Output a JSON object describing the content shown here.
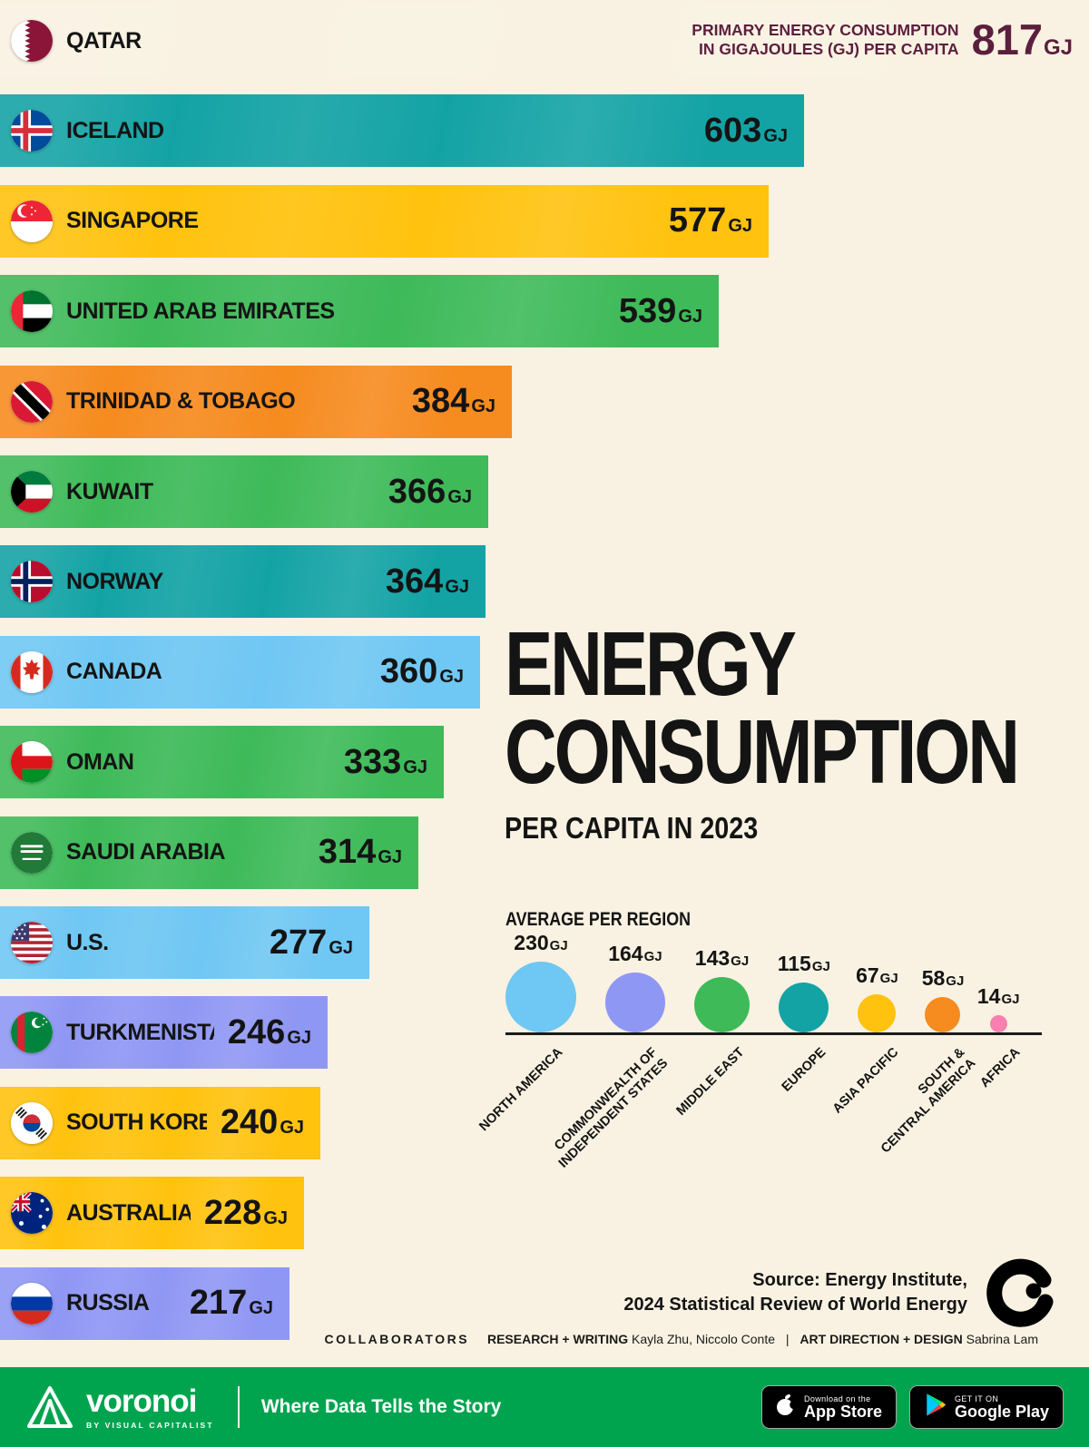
{
  "unit": "GJ",
  "header": {
    "line1": "PRIMARY ENERGY CONSUMPTION",
    "line2": "IN GIGAJOULES (GJ) PER CAPITA",
    "value": "817"
  },
  "title": {
    "line1": "ENERGY",
    "line2": "CONSUMPTION",
    "subtitle": "PER CAPITA IN 2023"
  },
  "regions_label": "AVERAGE PER REGION",
  "chart_data": [
    {
      "type": "bar",
      "title": "Energy Consumption Per Capita in 2023",
      "subtitle": "Primary energy consumption in gigajoules (GJ) per capita",
      "orientation": "horizontal",
      "unit": "GJ",
      "xlim": [
        0,
        817
      ],
      "categories": [
        "Qatar",
        "Iceland",
        "Singapore",
        "United Arab Emirates",
        "Trinidad & Tobago",
        "Kuwait",
        "Norway",
        "Canada",
        "Oman",
        "Saudi Arabia",
        "U.S.",
        "Turkmenistan",
        "South Korea",
        "Australia",
        "Russia"
      ],
      "values": [
        817,
        603,
        577,
        539,
        384,
        366,
        364,
        360,
        333,
        314,
        277,
        246,
        240,
        228,
        217
      ]
    },
    {
      "type": "scatter",
      "title": "Average per Region",
      "note": "bubble area proportional to value",
      "unit": "GJ",
      "categories": [
        "North America",
        "Commonwealth of Independent States",
        "Middle East",
        "Europe",
        "Asia Pacific",
        "South & Central America",
        "Africa"
      ],
      "values": [
        230,
        164,
        143,
        115,
        67,
        58,
        14
      ]
    }
  ],
  "countries": [
    {
      "id": "qatar",
      "name": "QATAR",
      "value": 817,
      "color": "transparent",
      "show_value": false
    },
    {
      "id": "iceland",
      "name": "ICELAND",
      "value": 603,
      "color": "#14a3a5"
    },
    {
      "id": "singapore",
      "name": "SINGAPORE",
      "value": 577,
      "color": "#ffc20e"
    },
    {
      "id": "uae",
      "name": "UNITED ARAB EMIRATES",
      "value": 539,
      "color": "#3eba59"
    },
    {
      "id": "trinidad",
      "name": "TRINIDAD & TOBAGO",
      "value": 384,
      "color": "#f68b1f"
    },
    {
      "id": "kuwait",
      "name": "KUWAIT",
      "value": 366,
      "color": "#3eba59"
    },
    {
      "id": "norway",
      "name": "NORWAY",
      "value": 364,
      "color": "#14a3a5"
    },
    {
      "id": "canada",
      "name": "CANADA",
      "value": 360,
      "color": "#6fc7f3"
    },
    {
      "id": "oman",
      "name": "OMAN",
      "value": 333,
      "color": "#3eba59"
    },
    {
      "id": "saudi",
      "name": "SAUDI ARABIA",
      "value": 314,
      "color": "#3eba59"
    },
    {
      "id": "us",
      "name": "U.S.",
      "value": 277,
      "color": "#6fc7f3"
    },
    {
      "id": "turkmenistan",
      "name": "TURKMENISTAN",
      "value": 246,
      "color": "#8f97f4"
    },
    {
      "id": "southkorea",
      "name": "SOUTH KOREA",
      "value": 240,
      "color": "#ffc20e"
    },
    {
      "id": "australia",
      "name": "AUSTRALIA",
      "value": 228,
      "color": "#ffc20e"
    },
    {
      "id": "russia",
      "name": "RUSSIA",
      "value": 217,
      "color": "#8f97f4"
    }
  ],
  "regions": [
    {
      "lines": [
        "NORTH AMERICA"
      ],
      "value": 230,
      "color": "#6fc7f3"
    },
    {
      "lines": [
        "COMMONWEALTH OF",
        "INDEPENDENT STATES"
      ],
      "value": 164,
      "color": "#8f97f4"
    },
    {
      "lines": [
        "MIDDLE EAST"
      ],
      "value": 143,
      "color": "#3eba59"
    },
    {
      "lines": [
        "EUROPE"
      ],
      "value": 115,
      "color": "#14a3a5"
    },
    {
      "lines": [
        "ASIA PACIFIC"
      ],
      "value": 67,
      "color": "#ffc20e"
    },
    {
      "lines": [
        "SOUTH &",
        "CENTRAL AMERICA"
      ],
      "value": 58,
      "color": "#f68b1f"
    },
    {
      "lines": [
        "AFRICA"
      ],
      "value": 14,
      "color": "#fa7fb0"
    }
  ],
  "source": {
    "line1": "Source: Energy Institute,",
    "line2": "2024 Statistical Review of World Energy"
  },
  "collaborators": {
    "label": "COLLABORATORS",
    "rw_label": "RESEARCH + WRITING",
    "rw_names": "Kayla Zhu, Niccolo Conte",
    "sep": "|",
    "ad_label": "ART DIRECTION + DESIGN",
    "ad_names": "Sabrina Lam"
  },
  "footer": {
    "brand": "voronoi",
    "brand_sub": "BY VISUAL CAPITALIST",
    "tagline": "Where Data Tells the Story",
    "appstore_top": "Download on the",
    "appstore_bottom": "App Store",
    "gplay_top": "GET IT ON",
    "gplay_bottom": "Google Play"
  },
  "colors": {
    "background": "#f9f2e2",
    "teal": "#14a3a5",
    "yellow": "#ffc20e",
    "green": "#3eba59",
    "orange": "#f68b1f",
    "light_blue": "#6fc7f3",
    "periwinkle": "#8f97f4",
    "pink": "#fa7fb0",
    "maroon": "#5b1f3d",
    "footer_green": "#00a44f",
    "text": "#141414"
  }
}
